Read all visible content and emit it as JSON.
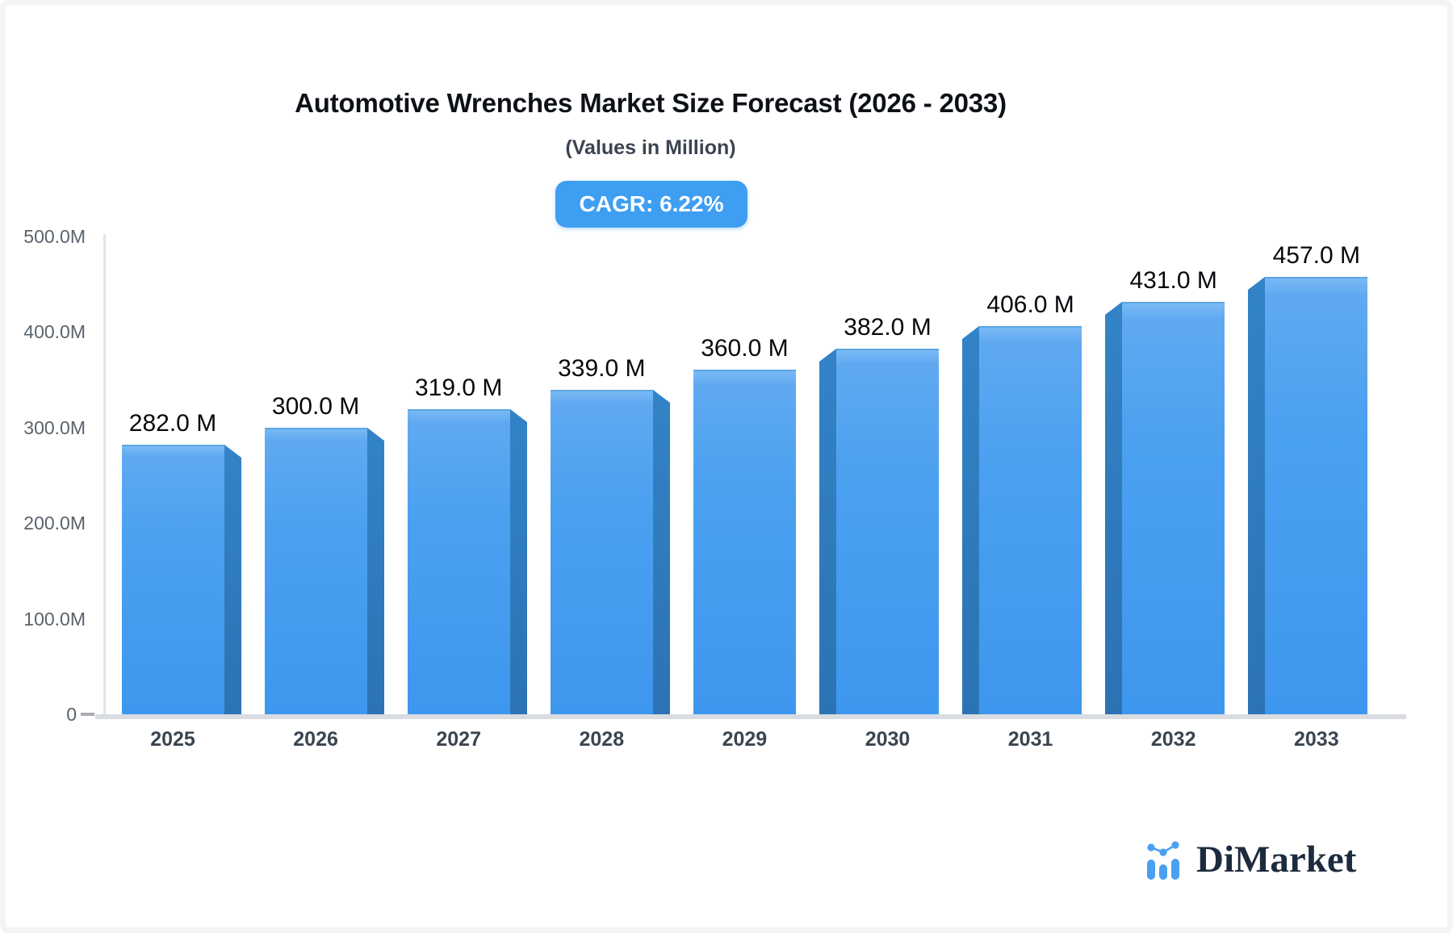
{
  "header": {
    "title": "Automotive Wrenches Market Size Forecast (2026 - 2033)",
    "subtitle": "(Values in Million)",
    "cagr_badge": "CAGR: 6.22%"
  },
  "brand": {
    "name": "DiMarket",
    "icon": "bar-line-chart-icon"
  },
  "colors": {
    "bar_front": "#4BA0F0",
    "bar_front_light": "#79B9F5",
    "bar_front_deep": "#3E97EE",
    "bar_side": "#2E7BBD",
    "badge_bg": "#3E9EF2",
    "axis_line": "#E2E4E8",
    "baseline": "#D9DCE0",
    "value_label": "#06090D",
    "x_label": "#3A4550",
    "y_label": "#59636D",
    "logo_navy": "#1C2B3D",
    "logo_blue": "#4AA0F0"
  },
  "chart_data": {
    "type": "bar",
    "title": "Automotive Wrenches Market Size Forecast (2026 - 2033)",
    "subtitle": "(Values in Million)",
    "annotation": "CAGR: 6.22%",
    "categories": [
      "2025",
      "2026",
      "2027",
      "2028",
      "2029",
      "2030",
      "2031",
      "2032",
      "2033"
    ],
    "values": [
      282,
      300,
      319,
      339,
      360,
      382,
      406,
      431,
      457
    ],
    "value_labels": [
      "282.0 M",
      "300.0 M",
      "319.0 M",
      "339.0 M",
      "360.0 M",
      "382.0 M",
      "406.0 M",
      "431.0 M",
      "457.0 M"
    ],
    "unit": "Million",
    "xlabel": "",
    "ylabel": "",
    "ylim": [
      0,
      500
    ],
    "y_ticks": [
      {
        "label": "500.0M",
        "value": 500
      },
      {
        "label": "400.0M",
        "value": 400
      },
      {
        "label": "300.0M",
        "value": 300
      },
      {
        "label": "200.0M",
        "value": 200
      },
      {
        "label": "100.0M",
        "value": 100
      },
      {
        "label": "0",
        "value": 0
      }
    ],
    "grid": false,
    "legend": false,
    "bar_style": "3d"
  }
}
